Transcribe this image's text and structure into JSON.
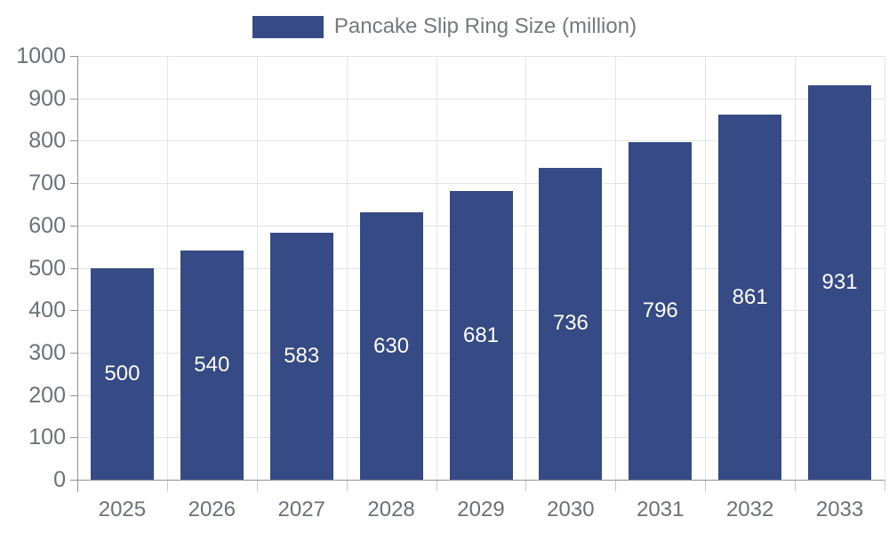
{
  "chart_data": {
    "type": "bar",
    "title": "Pancake Slip Ring Size (million)",
    "categories": [
      "2025",
      "2026",
      "2027",
      "2028",
      "2029",
      "2030",
      "2031",
      "2032",
      "2033"
    ],
    "series": [
      {
        "name": "Pancake Slip Ring Size (million)",
        "values": [
          500,
          540,
          583,
          630,
          681,
          736,
          796,
          861,
          931
        ],
        "color": "#364a85"
      }
    ],
    "xlabel": "",
    "ylabel": "",
    "ylim": [
      0,
      1000
    ],
    "y_tick_step": 100,
    "y_tick_labels": [
      "0",
      "100",
      "200",
      "300",
      "400",
      "500",
      "600",
      "700",
      "800",
      "900",
      "1000"
    ],
    "grid": true,
    "legend_position": "top",
    "value_labels": "inside-center",
    "value_label_color": "#ffffff",
    "axis_text_color": "#6e7079",
    "gridline_color": "#e3e4e9",
    "axis_line_color": "#8f9298"
  }
}
